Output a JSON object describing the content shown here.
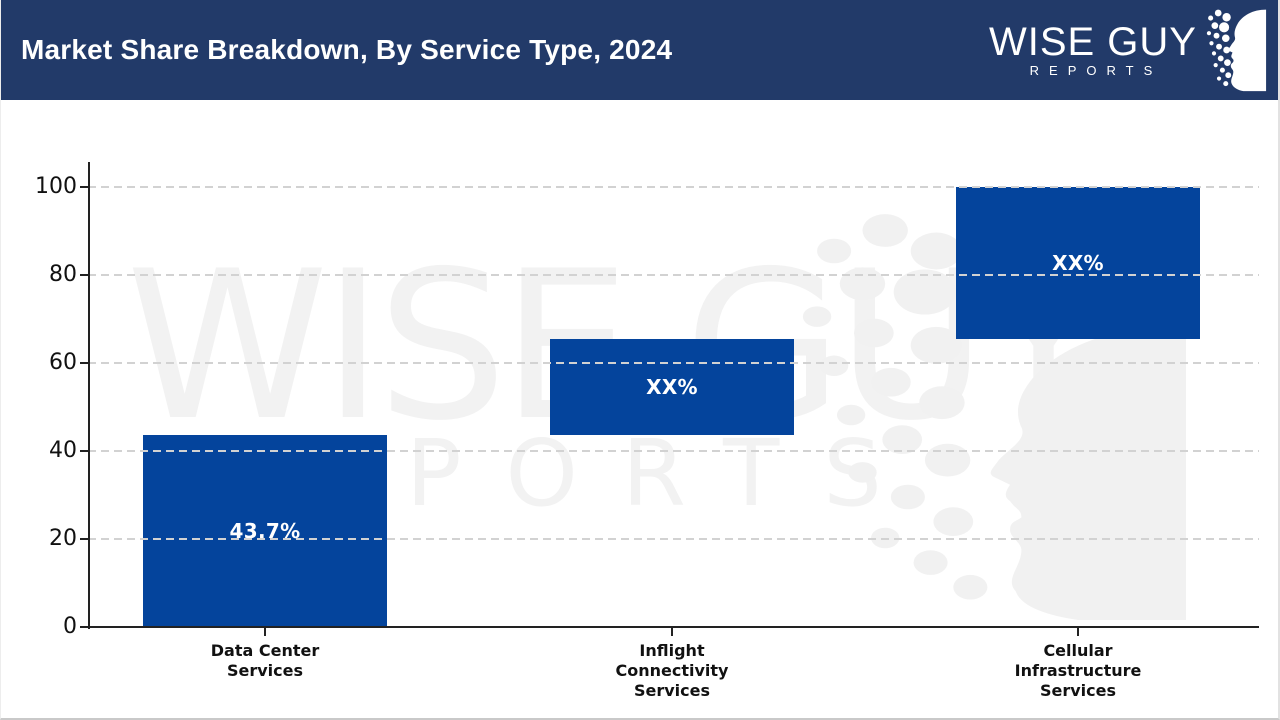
{
  "header": {
    "title": "Market Share Breakdown, By Service Type, 2024",
    "logo": {
      "wordmark": "WISE GUY",
      "subtext": "REPORTS"
    }
  },
  "watermark": {
    "wordmark": "WISE GUY",
    "subtext": "REPORTS"
  },
  "chart_data": {
    "type": "bar",
    "variant": "stacked-waterfall-segments",
    "title": "Market Share Breakdown, By Service Type, 2024",
    "unit": "%",
    "categories": [
      "Data Center Services",
      "Inflight Connectivity Services",
      "Cellular Infrastructure Services"
    ],
    "category_label_lines": [
      [
        "Data Center",
        "Services"
      ],
      [
        "Inflight",
        "Connectivity",
        "Services"
      ],
      [
        "Cellular",
        "Infrastructure",
        "Services"
      ]
    ],
    "segments": [
      {
        "category": "Data Center Services",
        "start": 0,
        "end": 43.7,
        "value_label": "43.7%"
      },
      {
        "category": "Inflight Connectivity Services",
        "start": 43.7,
        "end": 65.5,
        "value_label": "XX%"
      },
      {
        "category": "Cellular Infrastructure Services",
        "start": 65.5,
        "end": 100,
        "value_label": "XX%"
      }
    ],
    "yticks": [
      0,
      20,
      40,
      60,
      80,
      100
    ],
    "ylim": [
      0,
      105.5
    ],
    "grid": "horizontal-dashed",
    "legend": "none",
    "bar_color": "#04449c",
    "value_label_color": "#ffffff"
  },
  "colors": {
    "header_bg": "#223a69",
    "bar": "#04449c",
    "axis": "#222222",
    "grid": "#d2d2d2",
    "watermark": "#f2f2f2",
    "text": "#111111"
  }
}
